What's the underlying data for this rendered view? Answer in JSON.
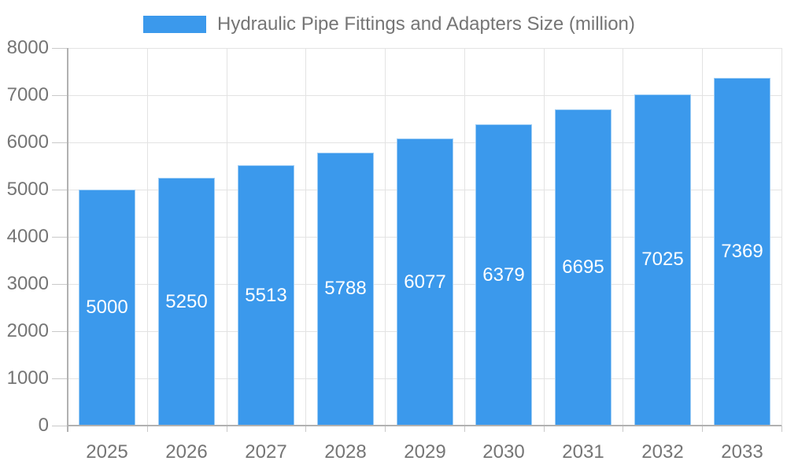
{
  "chart_data": {
    "type": "bar",
    "title": "Hydraulic Pipe Fittings and Adapters Size (million)",
    "legend_position": "top",
    "categories": [
      "2025",
      "2026",
      "2027",
      "2028",
      "2029",
      "2030",
      "2031",
      "2032",
      "2033"
    ],
    "values": [
      5000,
      5250,
      5513,
      5788,
      6077,
      6379,
      6695,
      7025,
      7369
    ],
    "series_name": "Hydraulic Pipe Fittings and Adapters Size (million)",
    "xlabel": "",
    "ylabel": "",
    "ylim": [
      0,
      8000
    ],
    "ytick_step": 1000,
    "ytick_labels": [
      "0",
      "1000",
      "2000",
      "3000",
      "4000",
      "5000",
      "6000",
      "7000",
      "8000"
    ],
    "grid": true,
    "value_labels_inside_bars": true,
    "colors": {
      "bar": "#3b99ec",
      "bar_edge": "#9ecdf5",
      "grid": "#e3e3e3",
      "axis": "#b1b1b1",
      "tick": "#c9c9c9",
      "label_text": "#757575",
      "value_text": "#ffffff",
      "background": "#ffffff"
    }
  }
}
